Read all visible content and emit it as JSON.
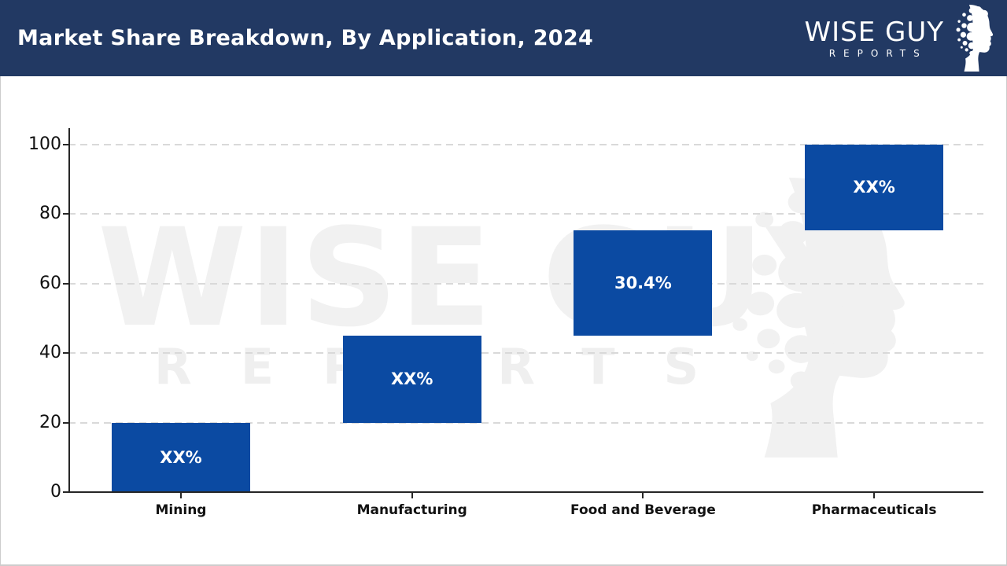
{
  "header": {
    "title": "Market Share Breakdown, By Application, 2024",
    "bg_color": "#223963",
    "logo": {
      "line1": "WISE GUY",
      "line2": "REPORTS"
    }
  },
  "watermark": {
    "line1": "WISE GUY",
    "line2": "REPORTS"
  },
  "chart_data": {
    "type": "bar",
    "subtype": "floating-waterfall",
    "title": "Market Share Breakdown, By Application, 2024",
    "categories": [
      "Mining",
      "Manufacturing",
      "Food and Beverage",
      "Pharmaceuticals"
    ],
    "series": [
      {
        "name": "Market share segment",
        "starts": [
          0,
          20,
          45,
          75.4
        ],
        "ends": [
          20,
          45,
          75.4,
          100
        ],
        "values": [
          20,
          25,
          30.4,
          24.6
        ]
      }
    ],
    "bar_labels": [
      "XX%",
      "XX%",
      "30.4%",
      "XX%"
    ],
    "xlabel": "",
    "ylabel": "",
    "ylim": [
      0,
      105
    ],
    "yticks": [
      0,
      20,
      40,
      60,
      80,
      100
    ],
    "grid": "horizontal-dashed",
    "legend": "none",
    "bar_color": "#0b4aa2",
    "grid_color": "#d9d9d9",
    "axis_color": "#262626"
  }
}
